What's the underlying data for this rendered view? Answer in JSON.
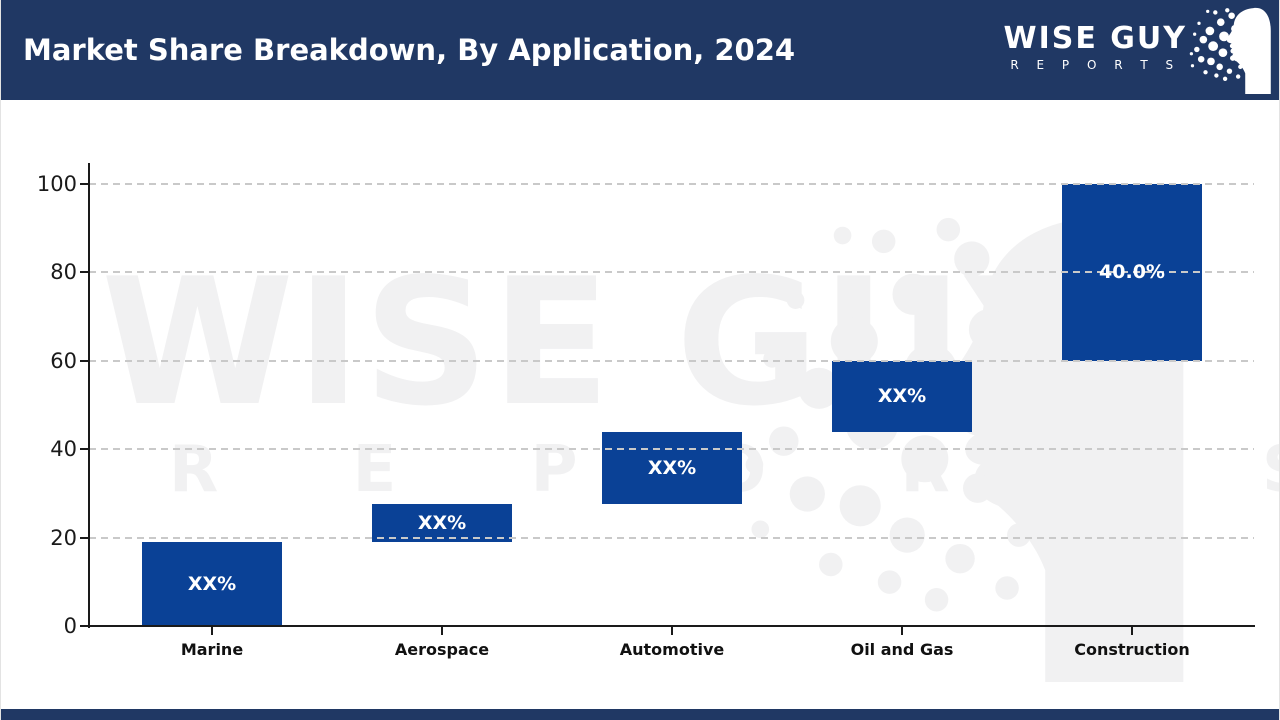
{
  "header": {
    "title": "Market Share Breakdown, By Application, 2024",
    "logo": {
      "name_line": "WISE GUY",
      "sub_line": "R E P O R T S"
    }
  },
  "watermark": {
    "name_line": "WISE GUY",
    "sub_line": "R E P O R T S"
  },
  "footer": {
    "text": ""
  },
  "colors": {
    "header_bg": "#203864",
    "footer_bg": "#203864",
    "bar_fill": "#0a4196",
    "bar_label": "#ffffff",
    "gridline": "#c9c9c9",
    "axis": "#1a1a1a",
    "watermark_gray": "#f1f1f2",
    "title_text": "#ffffff"
  },
  "chart_data": {
    "type": "bar",
    "subtype": "floating-waterfall",
    "title": "Market Share Breakdown, By Application, 2024",
    "categories": [
      "Marine",
      "Aerospace",
      "Automotive",
      "Oil and Gas",
      "Construction"
    ],
    "segments": [
      {
        "category": "Marine",
        "start": 0,
        "end": 19,
        "label": "XX%"
      },
      {
        "category": "Aerospace",
        "start": 19,
        "end": 27.5,
        "label": "XX%"
      },
      {
        "category": "Automotive",
        "start": 27.5,
        "end": 44,
        "label": "XX%"
      },
      {
        "category": "Oil and Gas",
        "start": 44,
        "end": 60,
        "label": "XX%"
      },
      {
        "category": "Construction",
        "start": 60,
        "end": 100,
        "label": "40.0%"
      }
    ],
    "values_pct_est": [
      19,
      8.5,
      16.5,
      16,
      40
    ],
    "yticks": [
      0,
      20,
      40,
      60,
      80,
      100
    ],
    "ylim": [
      0,
      105
    ],
    "xlabel": "",
    "ylabel": "",
    "grid": "horizontal-dashed-above-bars",
    "legend": "none"
  }
}
